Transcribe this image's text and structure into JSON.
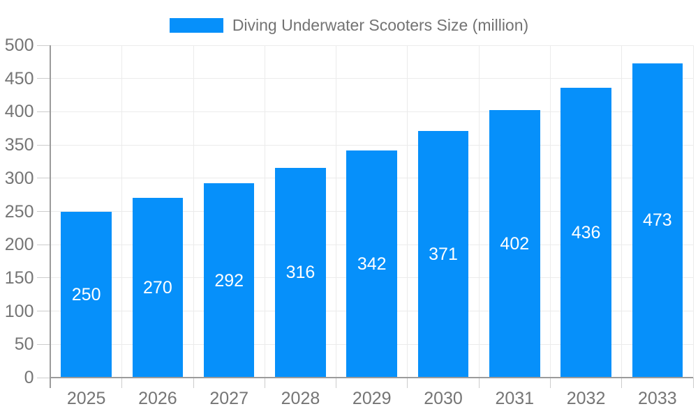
{
  "legend": {
    "label": "Diving Underwater Scooters Size (million)"
  },
  "chart_data": {
    "type": "bar",
    "title": "Diving Underwater Scooters Size (million)",
    "categories": [
      "2025",
      "2026",
      "2027",
      "2028",
      "2029",
      "2030",
      "2031",
      "2032",
      "2033"
    ],
    "series": [
      {
        "name": "Diving Underwater Scooters Size (million)",
        "values": [
          250,
          270,
          292,
          316,
          342,
          371,
          402,
          436,
          473
        ]
      }
    ],
    "xlabel": "",
    "ylabel": "",
    "ylim": [
      0,
      500
    ],
    "ytick_step": 50,
    "grid": true,
    "legend_position": "top-center",
    "value_labels": "inside-center"
  },
  "colors": {
    "bar": "#0690fa",
    "grid_line": "#ebebeb",
    "axis_line": "#9b9b9b",
    "tick": "#cccccc",
    "axis_label": "#757575",
    "legend_text": "#737373",
    "value_label": "#ffffff",
    "background": "#ffffff"
  }
}
